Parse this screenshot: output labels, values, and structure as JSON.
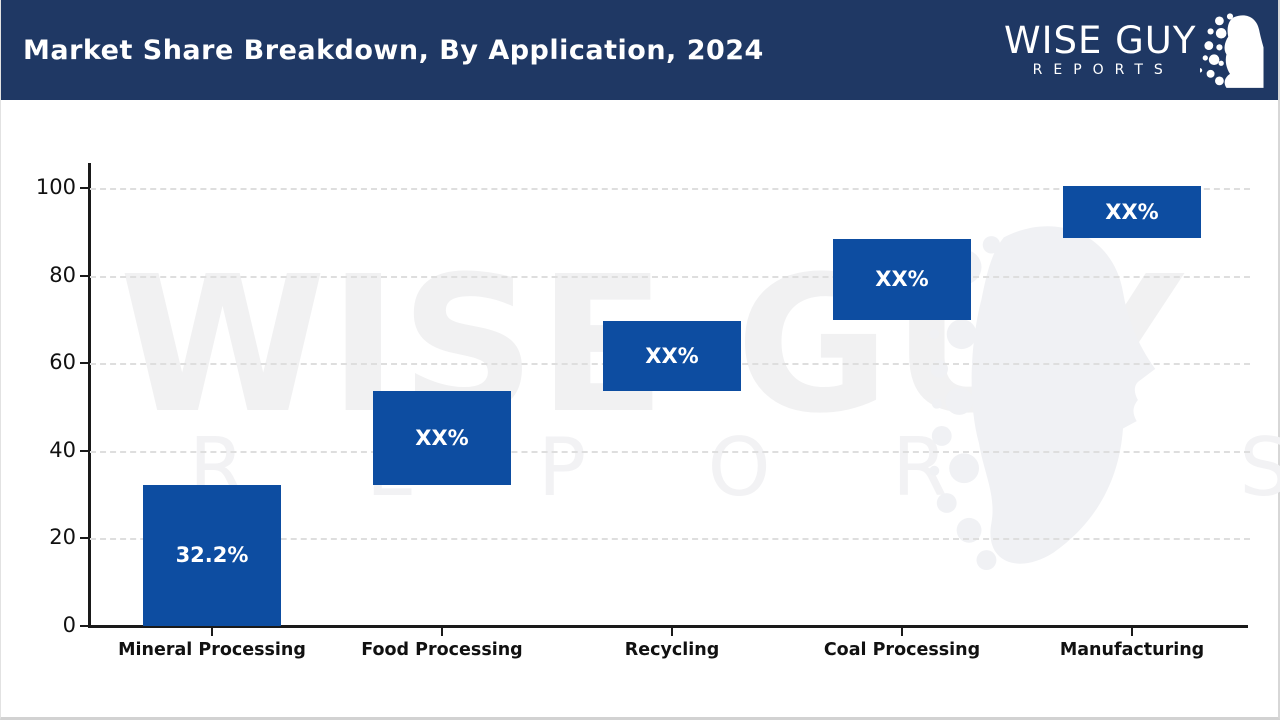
{
  "header": {
    "title": "Market Share Breakdown, By Application, 2024",
    "logo_line1": "WISE GUY",
    "logo_line2": "REPORTS",
    "bg_color": "#1f3864"
  },
  "watermark": {
    "line1": "WISE GUY",
    "line2": "R E P O R T S"
  },
  "chart_data": {
    "type": "bar",
    "subtype": "waterfall",
    "title": "Market Share Breakdown, By Application, 2024",
    "categories": [
      "Mineral Processing",
      "Food Processing",
      "Recycling",
      "Coal Processing",
      "Manufacturing"
    ],
    "bars": [
      {
        "category": "Mineral Processing",
        "start": 0,
        "end": 32.2,
        "label": "32.2%"
      },
      {
        "category": "Food Processing",
        "start": 32.2,
        "end": 53.5,
        "label": "XX%"
      },
      {
        "category": "Recycling",
        "start": 53.6,
        "end": 69.6,
        "label": "XX%"
      },
      {
        "category": "Coal Processing",
        "start": 69.9,
        "end": 88.4,
        "label": "XX%"
      },
      {
        "category": "Manufacturing",
        "start": 88.6,
        "end": 100.5,
        "label": "XX%"
      }
    ],
    "xlabel": "",
    "ylabel": "",
    "ylim": [
      0,
      105
    ],
    "yticks": [
      0,
      20,
      40,
      60,
      80,
      100
    ],
    "grid": "horizontal-dashed",
    "legend": "none",
    "bar_color": "#0d4da1",
    "bar_label_color": "#ffffff",
    "axis_color": "#1a1a1a"
  }
}
